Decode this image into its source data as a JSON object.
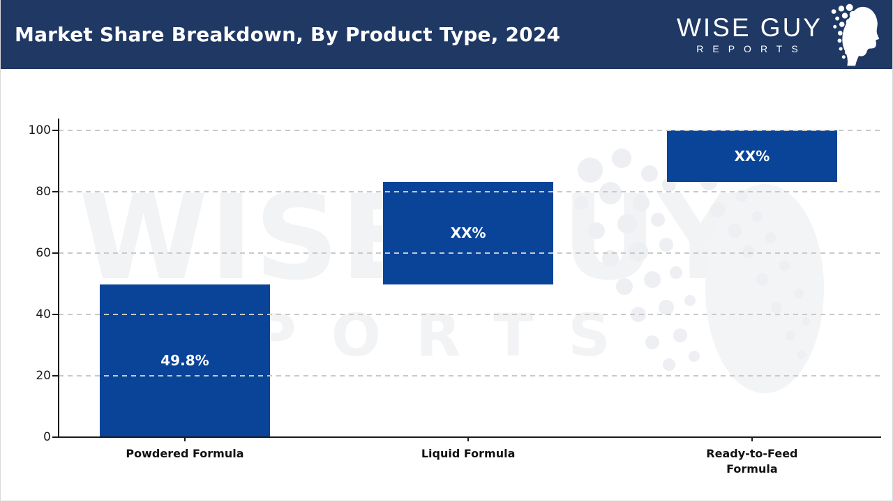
{
  "header": {
    "title": "Market Share Breakdown, By Product Type, 2024",
    "logo": {
      "line1": "WISE GUY",
      "line2": "REPORTS"
    }
  },
  "watermark": {
    "line1": "WISE GUY",
    "line2": "REPORTS"
  },
  "chart_data": {
    "type": "bar",
    "subtype": "waterfall",
    "title": "Market Share Breakdown, By Product Type, 2024",
    "categories": [
      "Powdered Formula",
      "Liquid Formula",
      "Ready-to-Feed Formula"
    ],
    "segments": [
      {
        "category": "Powdered Formula",
        "start": 0,
        "end": 49.8,
        "label": "49.8%"
      },
      {
        "category": "Liquid Formula",
        "start": 49.8,
        "end": 83.2,
        "label": "XX%"
      },
      {
        "category": "Ready-to-Feed Formula",
        "start": 83.2,
        "end": 100,
        "label": "XX%"
      }
    ],
    "xlabel": "",
    "ylabel": "",
    "ylim": [
      0,
      100
    ],
    "yticks": [
      0,
      20,
      40,
      60,
      80,
      100
    ],
    "grid": "horizontal-dashed",
    "legend": "none",
    "bar_color": "#0a4499",
    "bar_label_color": "#ffffff"
  },
  "colors": {
    "header_bg": "#1f3864",
    "bar": "#0a4499",
    "grid": "#c9c9c9",
    "axis": "#1a1a1a",
    "watermark": "#f2f3f5"
  }
}
